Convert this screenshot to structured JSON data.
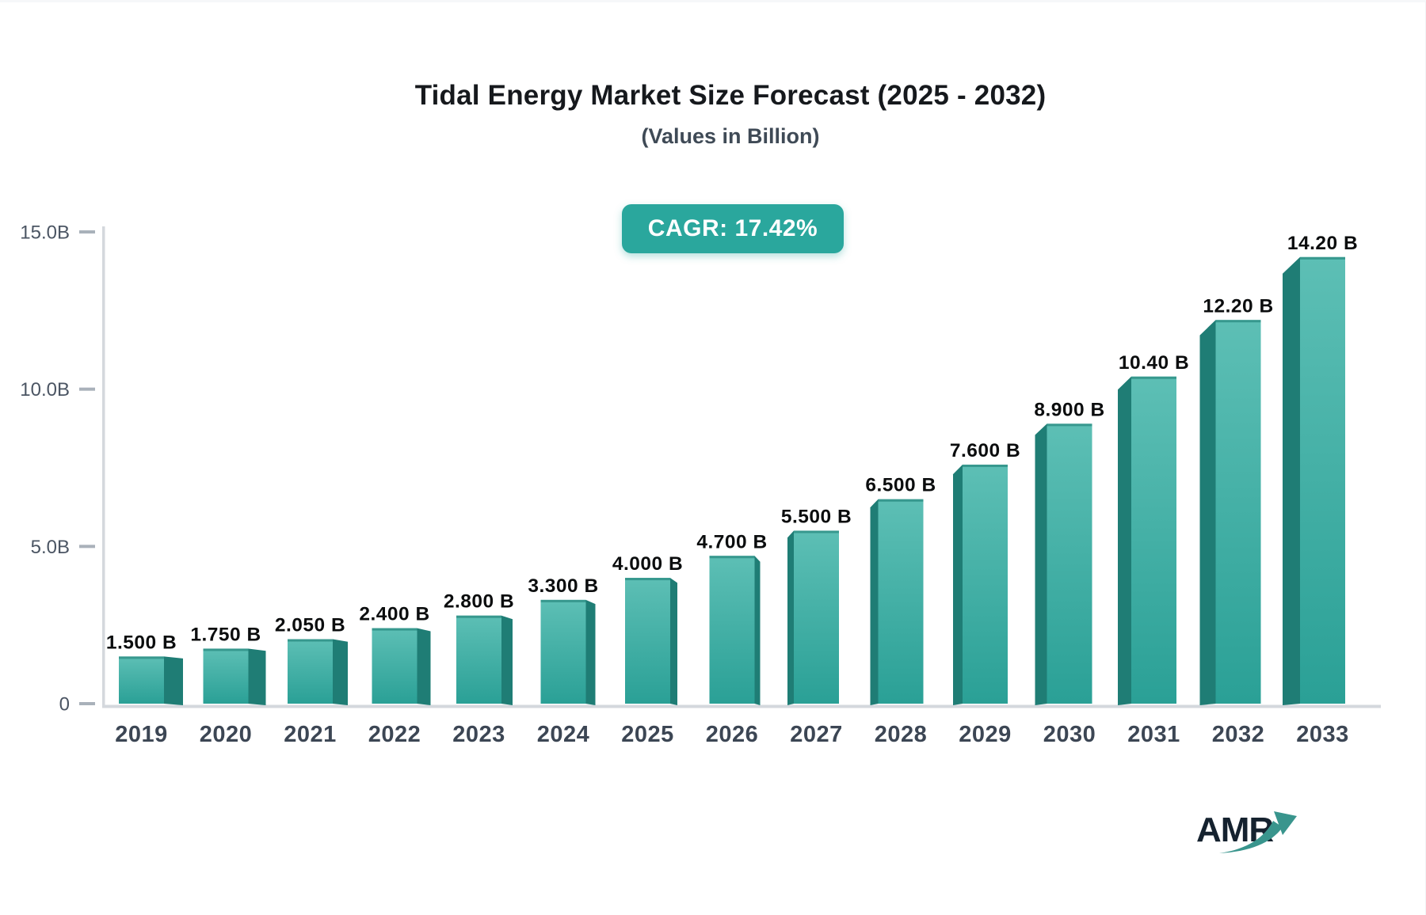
{
  "header": {
    "title": "Tidal Energy Market Size Forecast (2025 - 2032)",
    "subtitle": "(Values in Billion)",
    "cagr_badge": "CAGR: 17.42%"
  },
  "logo": {
    "text": "AMR"
  },
  "colors": {
    "badge_teal": "#2aa79d",
    "bar_front_top": "#5dbfb5",
    "bar_front_bottom": "#2aa096",
    "bar_side": "#1f7d75",
    "bar_top_edge": "#37988e",
    "axis_line": "#d4d8dd",
    "tick_dash": "#a9b1ba",
    "tick_text": "#4b5563",
    "year_text": "#3c4654",
    "value_text": "#0b0d0e",
    "logo_text": "#15222f",
    "logo_arrow": "#39958d"
  },
  "chart_data": {
    "type": "bar",
    "title": "Tidal Energy Market Size Forecast (2025 - 2032)",
    "subtitle": "(Values in Billion)",
    "cagr": "17.42%",
    "categories": [
      "2019",
      "2020",
      "2021",
      "2022",
      "2023",
      "2024",
      "2025",
      "2026",
      "2027",
      "2028",
      "2029",
      "2030",
      "2031",
      "2032",
      "2033"
    ],
    "values": [
      1.5,
      1.75,
      2.05,
      2.4,
      2.8,
      3.3,
      4.0,
      4.7,
      5.5,
      6.5,
      7.6,
      8.9,
      10.4,
      12.2,
      14.2
    ],
    "bar_labels": [
      "1.500 B",
      "1.750 B",
      "2.050 B",
      "2.400 B",
      "2.800 B",
      "3.300 B",
      "4.000 B",
      "4.700 B",
      "5.500 B",
      "6.500 B",
      "7.600 B",
      "8.900 B",
      "10.40 B",
      "12.20 B",
      "14.20 B"
    ],
    "unit": "B",
    "xlabel": "",
    "ylabel": "",
    "ylim": [
      0,
      15
    ],
    "yticks": [
      {
        "label": "15.0B",
        "value": 15
      },
      {
        "label": "10.0B",
        "value": 10
      },
      {
        "label": "5.0B",
        "value": 5
      },
      {
        "label": "0",
        "value": 0
      }
    ],
    "grid": false,
    "legend": false,
    "style": "pseudo-3d teal bars, white background, value labels above bars"
  }
}
